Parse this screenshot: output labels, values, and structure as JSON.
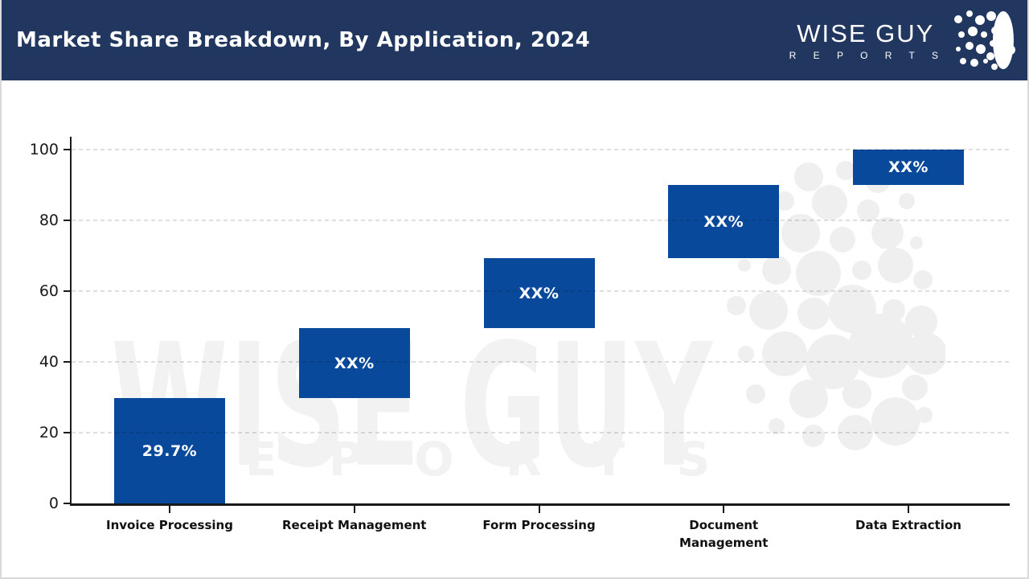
{
  "header": {
    "title": "Market Share Breakdown, By Application, 2024",
    "logo": {
      "line1": "WISE GUY",
      "line2": "R E P O R T S"
    }
  },
  "watermark": {
    "line1": "WISE GUY",
    "line2": "R E P O R T S"
  },
  "colors": {
    "header_bg": "#21375F",
    "title": "#FFFFFF",
    "bar": "#09499C",
    "bar_label": "#FFFFFF",
    "grid": "#DEDEDE",
    "axis": "#1A1A1A",
    "tick_label": "#1A1A1A",
    "watermark": "#F2F2F2"
  },
  "chart_data": {
    "type": "bar",
    "subtype": "waterfall",
    "title": "Market Share Breakdown, By Application, 2024",
    "xlabel": "",
    "ylabel": "",
    "ylim": [
      0,
      100
    ],
    "yticks": [
      0,
      20,
      40,
      60,
      80,
      100
    ],
    "grid": "horizontal-dashed",
    "legend": "none",
    "categories": [
      "Invoice Processing",
      "Receipt Management",
      "Form Processing",
      "Document Management",
      "Data Extraction"
    ],
    "segments": [
      {
        "category": "Invoice Processing",
        "start": 0,
        "end": 29.7,
        "label": "29.7%",
        "display_lines": [
          "Invoice Processing"
        ]
      },
      {
        "category": "Receipt Management",
        "start": 29.7,
        "end": 49.5,
        "label": "XX%",
        "display_lines": [
          "Receipt Management"
        ]
      },
      {
        "category": "Form Processing",
        "start": 49.5,
        "end": 69.3,
        "label": "XX%",
        "display_lines": [
          "Form Processing"
        ]
      },
      {
        "category": "Document Management",
        "start": 69.3,
        "end": 90,
        "label": "XX%",
        "display_lines": [
          "Document",
          "Management"
        ]
      },
      {
        "category": "Data Extraction",
        "start": 90,
        "end": 100,
        "label": "XX%",
        "display_lines": [
          "Data Extraction"
        ]
      }
    ]
  }
}
